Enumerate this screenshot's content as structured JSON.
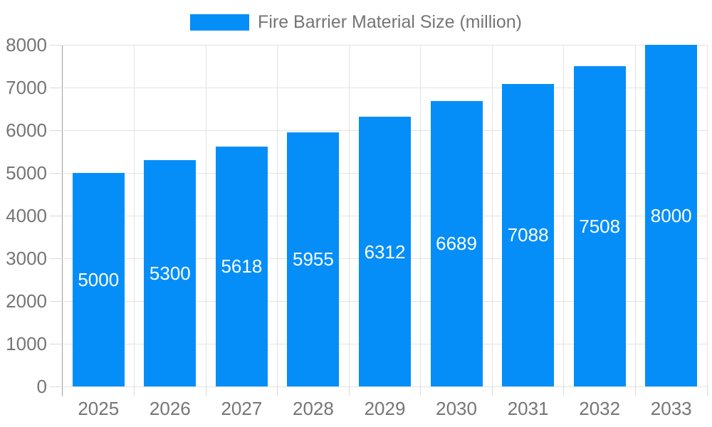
{
  "chart_data": {
    "type": "bar",
    "title": "Fire Barrier Material Size (million)",
    "categories": [
      "2025",
      "2026",
      "2027",
      "2028",
      "2029",
      "2030",
      "2031",
      "2032",
      "2033"
    ],
    "values": [
      5000,
      5300,
      5618,
      5955,
      6312,
      6689,
      7088,
      7508,
      8000
    ],
    "xlabel": "",
    "ylabel": "",
    "ylim": [
      0,
      8000
    ],
    "yticks": [
      0,
      1000,
      2000,
      3000,
      4000,
      5000,
      6000,
      7000,
      8000
    ],
    "grid": "horizontal-and-vertical",
    "legend_position": "top-center",
    "value_labels": "inside-center"
  },
  "colors": {
    "accent": "#058EF8",
    "grid": "#E3E3E3",
    "axis": "#9E9E9E",
    "tick": "#D9D9D9",
    "text": "#757575",
    "value_text": "#FFFFFF",
    "background": "#FFFFFF"
  }
}
